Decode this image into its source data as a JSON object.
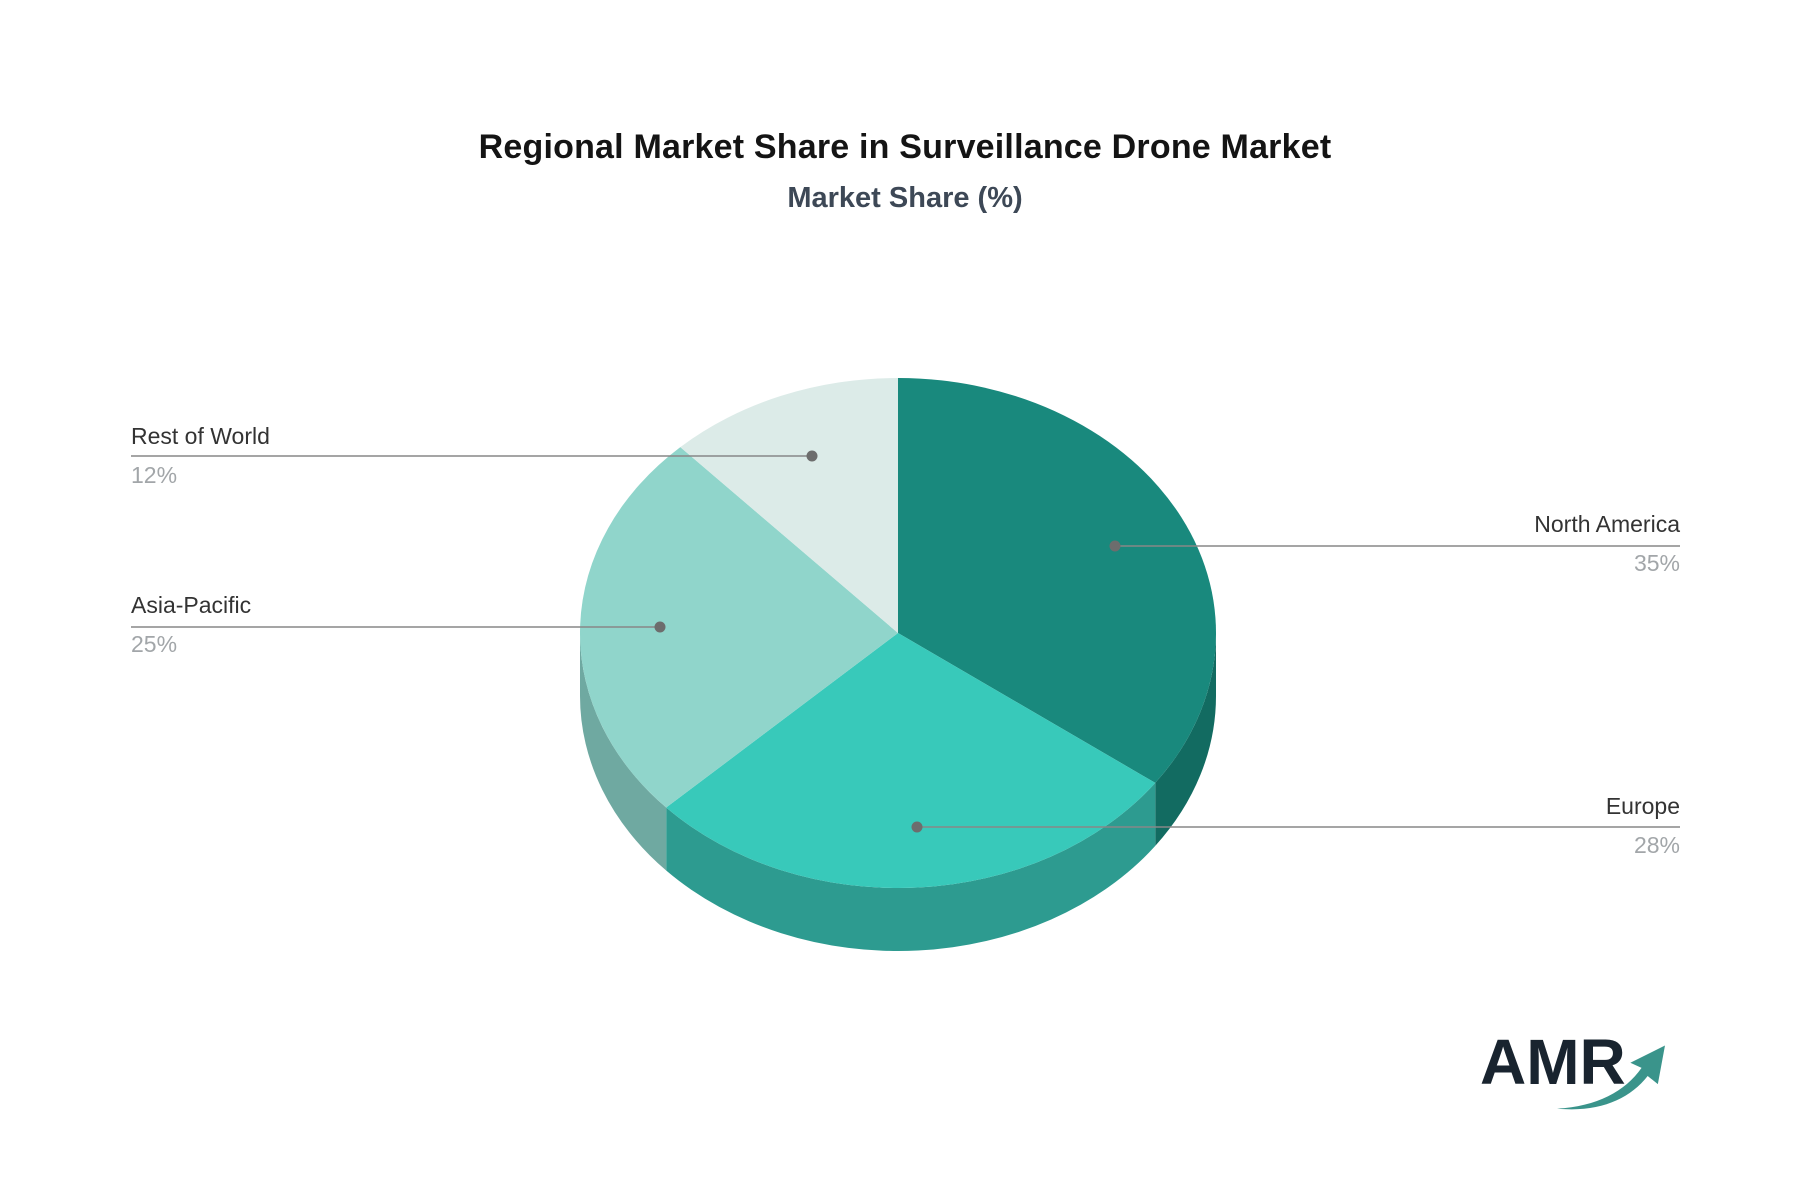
{
  "title": "Regional Market Share in Surveillance Drone Market",
  "subtitle": "Market Share (%)",
  "chart_data": {
    "type": "pie",
    "style": "3d",
    "title": "Regional Market Share in Surveillance Drone Market",
    "subtitle": "Market Share (%)",
    "unit": "%",
    "categories": [
      "North America",
      "Europe",
      "Asia-Pacific",
      "Rest of World"
    ],
    "values": [
      35,
      28,
      25,
      12
    ],
    "percent_labels": [
      "35%",
      "28%",
      "25%",
      "12%"
    ],
    "colors": [
      "#19897d",
      "#38c9ba",
      "#90d5cb",
      "#dcebe8"
    ],
    "side_colors": [
      "#126b61",
      "#2d9b90",
      "#6fa9a1",
      "#b7d4cf"
    ],
    "start_angle_deg": 0,
    "direction": "clockwise",
    "legend": "none"
  },
  "labels": {
    "north_america": {
      "name": "North America",
      "pct": "35%"
    },
    "europe": {
      "name": "Europe",
      "pct": "28%"
    },
    "asia_pacific": {
      "name": "Asia-Pacific",
      "pct": "25%"
    },
    "rest_of_world": {
      "name": "Rest of World",
      "pct": "12%"
    }
  },
  "logo": {
    "text": "AMR"
  },
  "colors": {
    "accent_teal": "#19897d",
    "label_text": "#333333",
    "pct_text": "#a2a6a9",
    "leader_line": "#878787",
    "leader_dot": "#6d6d6d",
    "logo_text": "#19242f",
    "logo_arrow": "#3a948b"
  }
}
